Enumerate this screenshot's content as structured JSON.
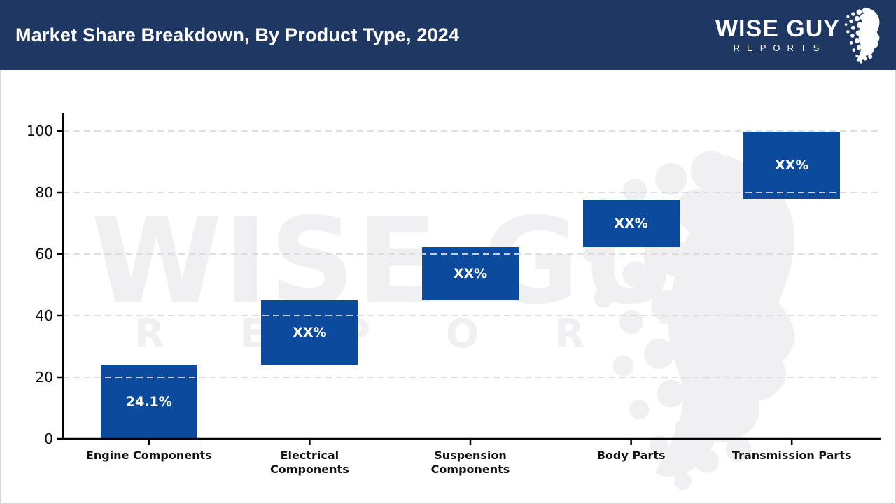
{
  "header": {
    "title": "Market Share Breakdown, By Product Type, 2024",
    "logo": {
      "name": "WISE GUY",
      "reports": "REPORTS"
    }
  },
  "watermark": {
    "name": "WISE GUY",
    "reports": "R E P O R T S"
  },
  "colors": {
    "header_bg": "#1F3763",
    "bar_fill": "#0C4A9E",
    "bar_label": "#FFFFFF",
    "axis": "#000000",
    "grid": "#DBDBDB",
    "watermark": "#F0F0F2",
    "page_bg": "#FFFFFF",
    "border": "#D8D8D8"
  },
  "chart_data": {
    "type": "bar",
    "subtype": "waterfall",
    "title": "Market Share Breakdown, By Product Type, 2024",
    "categories": [
      "Engine Components",
      "Electrical Components",
      "Suspension Components",
      "Body Parts",
      "Transmission Parts"
    ],
    "category_label_lines": [
      [
        "Engine Components"
      ],
      [
        "Electrical",
        "Components"
      ],
      [
        "Suspension",
        "Components"
      ],
      [
        "Body Parts"
      ],
      [
        "Transmission Parts"
      ]
    ],
    "segments": [
      {
        "category": "Engine Components",
        "start": 0,
        "end": 24.1,
        "label": "24.1%"
      },
      {
        "category": "Electrical Components",
        "start": 24.1,
        "end": 45.0,
        "label": "XX%"
      },
      {
        "category": "Suspension Components",
        "start": 45.0,
        "end": 62.2,
        "label": "XX%"
      },
      {
        "category": "Body Parts",
        "start": 62.2,
        "end": 77.7,
        "label": "XX%"
      },
      {
        "category": "Transmission Parts",
        "start": 78.0,
        "end": 99.8,
        "label": "XX%"
      }
    ],
    "xlabel": "",
    "ylabel": "",
    "ylim": [
      0,
      100
    ],
    "yticks": [
      0,
      20,
      40,
      60,
      80,
      100
    ],
    "grid": {
      "axis": "y",
      "style": "dashed"
    },
    "legend": null
  }
}
